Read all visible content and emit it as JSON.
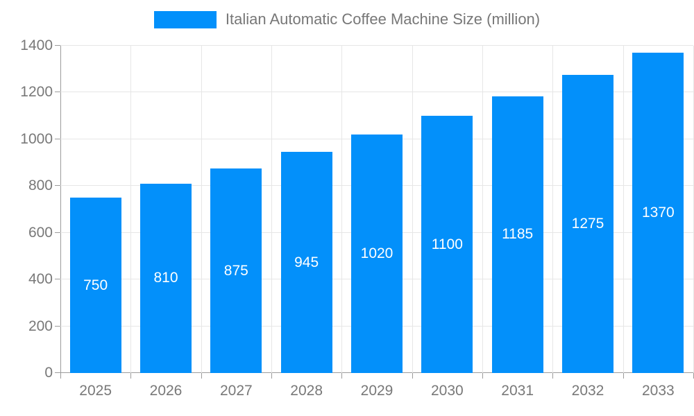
{
  "chart_data": {
    "type": "bar",
    "title": "",
    "legend": "Italian Automatic Coffee Machine Size (million)",
    "legend_position": "top-center",
    "categories": [
      "2025",
      "2026",
      "2027",
      "2028",
      "2029",
      "2030",
      "2031",
      "2032",
      "2033"
    ],
    "values": [
      750,
      810,
      875,
      945,
      1020,
      1100,
      1185,
      1275,
      1370
    ],
    "xlabel": "",
    "ylabel": "",
    "ylim": [
      0,
      1400
    ],
    "y_ticks": [
      0,
      200,
      400,
      600,
      800,
      1000,
      1200,
      1400
    ],
    "grid": true,
    "bar_label_position": "inside-center",
    "colors": {
      "bar": "#0390FA",
      "bar_label": "#FFFFFF",
      "axis_line": "#9B9B9B",
      "grid_line": "#E6E6E6",
      "tick_text": "#787878",
      "legend_text": "#777777",
      "background": "#FFFFFF"
    }
  }
}
